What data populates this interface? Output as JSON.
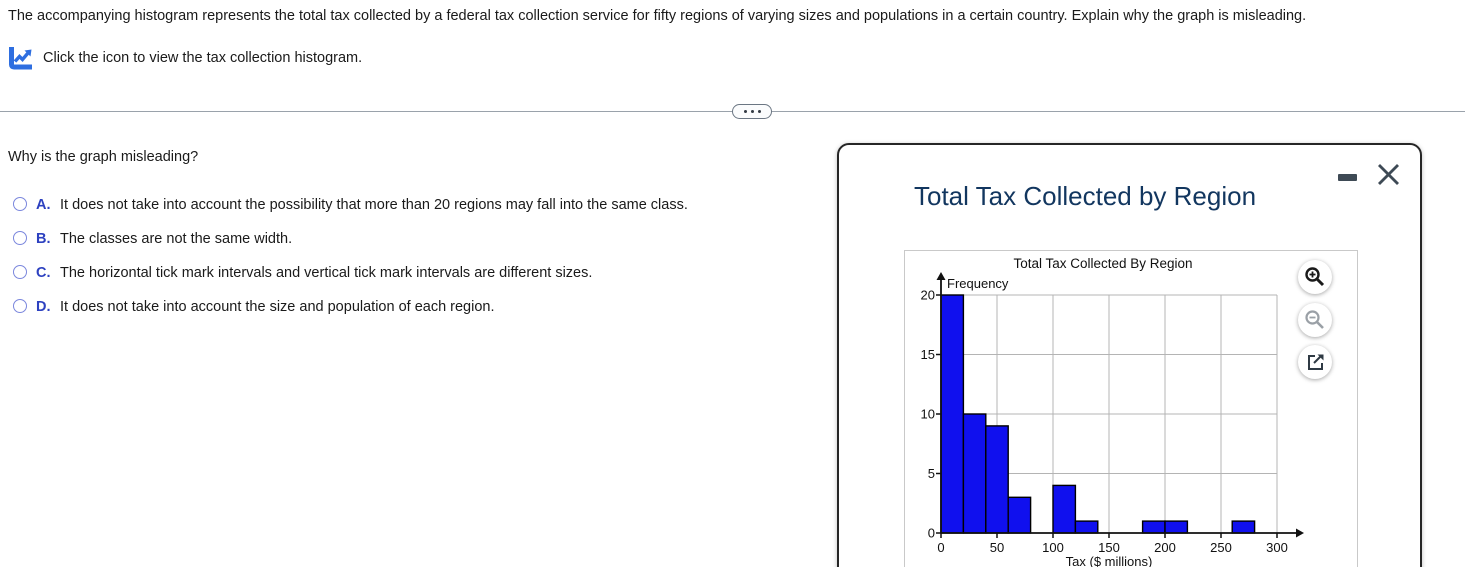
{
  "page": {
    "prompt": "The accompanying histogram represents the total tax collected by a federal tax collection service for fifty regions of varying sizes and populations in a certain country. Explain why the graph is misleading.",
    "icon_caption": "Click the icon to view the tax collection histogram.",
    "question": "Why is the graph misleading?",
    "options": [
      {
        "letter": "A.",
        "text": "It does not take into account the possibility that more than 20 regions may fall into the same class."
      },
      {
        "letter": "B.",
        "text": "The classes are not the same width."
      },
      {
        "letter": "C.",
        "text": "The horizontal tick mark intervals and vertical tick mark intervals are different sizes."
      },
      {
        "letter": "D.",
        "text": "It does not take into account the size and population of each region."
      }
    ]
  },
  "popup": {
    "title": "Total Tax Collected by Region"
  },
  "chart_data": {
    "type": "bar",
    "title": "Total Tax Collected By Region",
    "xlabel": "Tax ($ millions)",
    "ylabel": "Frequency",
    "xlim": [
      0,
      300
    ],
    "ylim": [
      0,
      20
    ],
    "x_ticks": [
      0,
      50,
      100,
      150,
      200,
      250,
      300
    ],
    "y_ticks": [
      0,
      5,
      10,
      15,
      20
    ],
    "bin_width": 20,
    "bins": [
      {
        "start": 0,
        "end": 20,
        "count": 20
      },
      {
        "start": 20,
        "end": 40,
        "count": 10
      },
      {
        "start": 40,
        "end": 60,
        "count": 9
      },
      {
        "start": 60,
        "end": 80,
        "count": 3
      },
      {
        "start": 80,
        "end": 100,
        "count": 0
      },
      {
        "start": 100,
        "end": 120,
        "count": 4
      },
      {
        "start": 120,
        "end": 140,
        "count": 1
      },
      {
        "start": 140,
        "end": 160,
        "count": 0
      },
      {
        "start": 160,
        "end": 180,
        "count": 0
      },
      {
        "start": 180,
        "end": 200,
        "count": 1
      },
      {
        "start": 200,
        "end": 220,
        "count": 1
      },
      {
        "start": 220,
        "end": 240,
        "count": 0
      },
      {
        "start": 240,
        "end": 260,
        "count": 0
      },
      {
        "start": 260,
        "end": 280,
        "count": 1
      }
    ],
    "bar_color": "#1010ee",
    "grid": true,
    "legend": "none"
  },
  "colors": {
    "accent_blue": "#2e6ee0",
    "option_letter_blue": "#2d41c0",
    "radio_border": "#7b87dd",
    "popup_title_navy": "#12365f",
    "window_border": "#262626",
    "gridline_gray": "#b4b4b4"
  }
}
